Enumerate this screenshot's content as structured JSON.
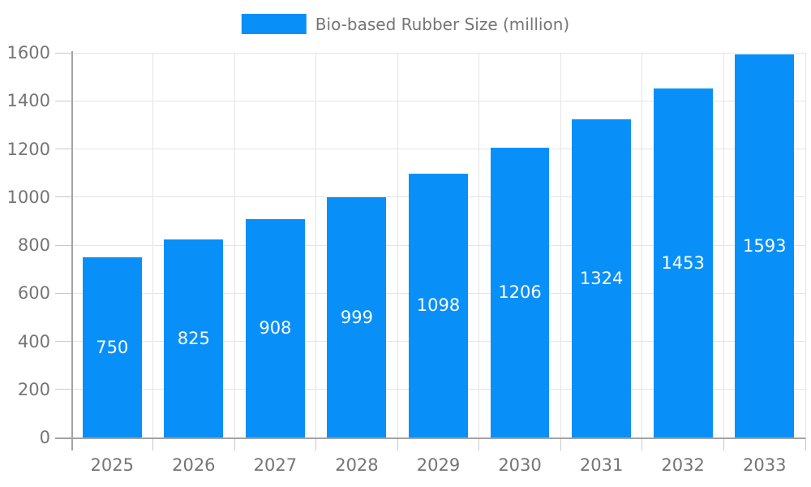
{
  "legend": {
    "label": "Bio-based Rubber Size (million)"
  },
  "chart_data": {
    "type": "bar",
    "title": "Bio-based Rubber Size (million)",
    "categories": [
      "2025",
      "2026",
      "2027",
      "2028",
      "2029",
      "2030",
      "2031",
      "2032",
      "2033"
    ],
    "series": [
      {
        "name": "Bio-based Rubber Size (million)",
        "values": [
          750,
          825,
          908,
          999,
          1098,
          1206,
          1324,
          1453,
          1593
        ]
      }
    ],
    "xlabel": "",
    "ylabel": "",
    "ylim": [
      0,
      1600
    ],
    "y_ticks": [
      0,
      200,
      400,
      600,
      800,
      1000,
      1200,
      1400,
      1600
    ],
    "grid": true,
    "legend_position": "top-center",
    "bar_labels_inside": true,
    "colors": {
      "bar": "#0990f8",
      "text": "#757575",
      "bar_label": "#ffffff",
      "gridline": "#e5e5e5",
      "axis": "#a3a3a3",
      "tick": "#c9c9c9",
      "background": "#ffffff"
    }
  }
}
